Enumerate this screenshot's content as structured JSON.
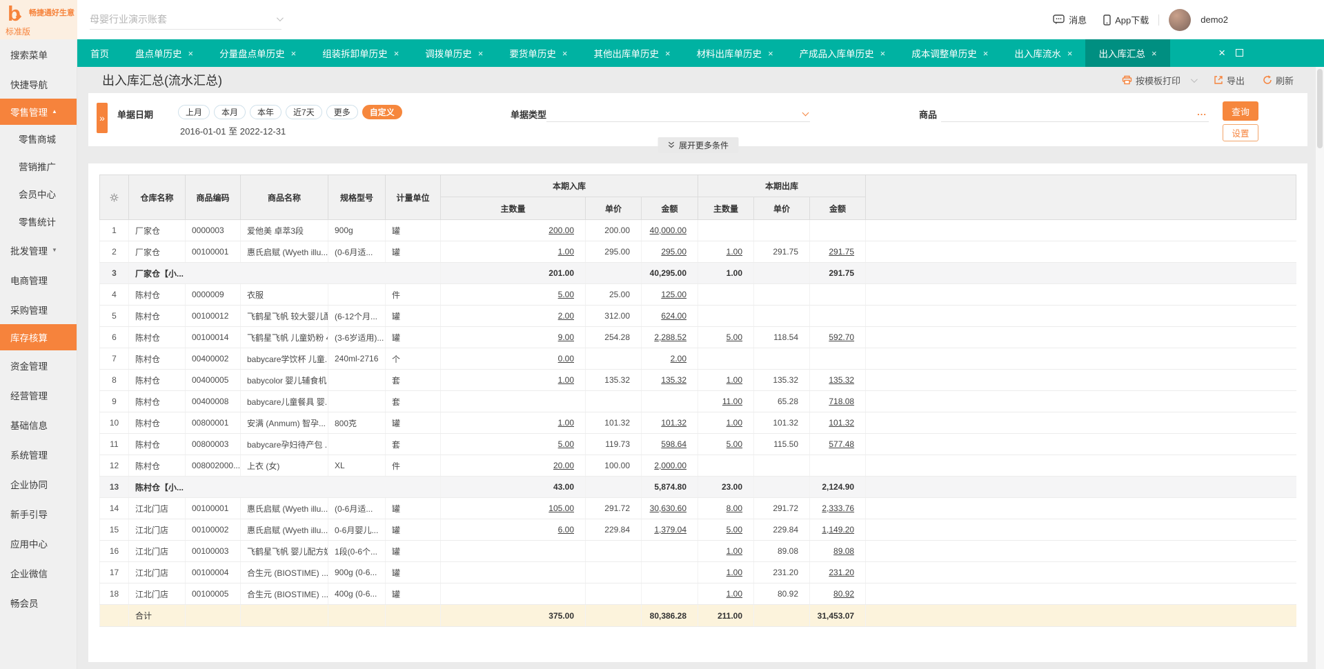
{
  "colors": {
    "teal": "#00b2a2",
    "teal_active": "#008f81",
    "orange": "#f6833c",
    "total_row_bg": "#fcf3dc"
  },
  "icons": {
    "message": "speech-bubble",
    "app_download": "phone",
    "print": "printer",
    "export": "arrow-out",
    "refresh": "circular-arrow",
    "collapse": "double-angle-right",
    "expand_more": "double-chevron-down",
    "gear": "gear",
    "ellipsis": "...",
    "close": "x",
    "fullscreen": "square-outline"
  },
  "topbar": {
    "logo_text": "畅捷通好生意",
    "logo_edition": "标准版",
    "account_select": "母婴行业演示账套",
    "messages_label": "消息",
    "app_download_label": "App下载",
    "username": "demo2"
  },
  "tabbar": {
    "home_tab": "首页",
    "tabs": [
      "盘点单历史",
      "分量盘点单历史",
      "组装拆卸单历史",
      "调拨单历史",
      "要货单历史",
      "其他出库单历史",
      "材料出库单历史",
      "产成品入库单历史",
      "成本调整单历史",
      "出入库流水",
      "出入库汇总"
    ],
    "active_tab": "出入库汇总"
  },
  "sidebar": {
    "items": [
      {
        "label": "搜索菜单"
      },
      {
        "label": "快捷导航"
      },
      {
        "label": "零售管理",
        "active": true,
        "arrow": "up"
      },
      {
        "label": "零售商城",
        "sub": true
      },
      {
        "label": "营销推广",
        "sub": true
      },
      {
        "label": "会员中心",
        "sub": true
      },
      {
        "label": "零售统计",
        "sub": true
      },
      {
        "label": "批发管理",
        "arrow": "down"
      },
      {
        "label": "电商管理"
      },
      {
        "label": "采购管理"
      },
      {
        "label": "库存核算",
        "active": true
      },
      {
        "label": "资金管理"
      },
      {
        "label": "经营管理"
      },
      {
        "label": "基础信息"
      },
      {
        "label": "系统管理"
      },
      {
        "label": "企业协同"
      },
      {
        "label": "新手引导"
      },
      {
        "label": "应用中心"
      },
      {
        "label": "企业微信"
      },
      {
        "label": "畅会员"
      }
    ]
  },
  "page": {
    "title": "出入库汇总(流水汇总)",
    "print_label": "按模板打印",
    "export_label": "导出",
    "refresh_label": "刷新"
  },
  "filters": {
    "date_label": "单据日期",
    "date_quick": [
      "上月",
      "本月",
      "本年",
      "近7天",
      "更多"
    ],
    "date_custom": "自定义",
    "date_range": "2016-01-01 至 2022-12-31",
    "doc_type_label": "单据类型",
    "product_label": "商品",
    "query_label": "查询",
    "settings_label": "设置",
    "expand_more_label": "展开更多条件"
  },
  "table": {
    "headers": {
      "warehouse": "仓库名称",
      "code": "商品编码",
      "name": "商品名称",
      "spec": "规格型号",
      "unit": "计量单位",
      "in_group": "本期入库",
      "out_group": "本期出库",
      "qty": "主数量",
      "price": "单价",
      "amount": "金额"
    },
    "rows": [
      {
        "no": "1",
        "warehouse": "厂家仓",
        "code": "0000003",
        "name": "爱他美 卓萃3段",
        "spec": "900g",
        "unit": "罐",
        "in_qty": "200.00",
        "in_price": "200.00",
        "in_amt": "40,000.00"
      },
      {
        "no": "2",
        "warehouse": "厂家仓",
        "code": "00100001",
        "name": "惠氏启赋 (Wyeth illu...",
        "spec": "(0-6月适...",
        "unit": "罐",
        "in_qty": "1.00",
        "in_price": "295.00",
        "in_amt": "295.00",
        "out_qty": "1.00",
        "out_price": "291.75",
        "out_amt": "291.75"
      },
      {
        "no": "3",
        "warehouse": "厂家仓【小...",
        "subtotal": true,
        "in_qty": "201.00",
        "in_amt": "40,295.00",
        "out_qty": "1.00",
        "out_amt": "291.75"
      },
      {
        "no": "4",
        "warehouse": "陈村仓",
        "code": "0000009",
        "name": "衣服",
        "spec": "",
        "unit": "件",
        "in_qty": "5.00",
        "in_price": "25.00",
        "in_amt": "125.00"
      },
      {
        "no": "5",
        "warehouse": "陈村仓",
        "code": "00100012",
        "name": "飞鹤星飞帆 较大婴儿配...",
        "spec": "(6-12个月...",
        "unit": "罐",
        "in_qty": "2.00",
        "in_price": "312.00",
        "in_amt": "624.00"
      },
      {
        "no": "6",
        "warehouse": "陈村仓",
        "code": "00100014",
        "name": "飞鹤星飞帆 儿童奶粉 4...",
        "spec": "(3-6岁适用)...",
        "unit": "罐",
        "in_qty": "9.00",
        "in_price": "254.28",
        "in_amt": "2,288.52",
        "out_qty": "5.00",
        "out_price": "118.54",
        "out_amt": "592.70"
      },
      {
        "no": "7",
        "warehouse": "陈村仓",
        "code": "00400002",
        "name": "babycare学饮杯 儿童...",
        "spec": "240ml-2716",
        "unit": "个",
        "in_qty": "0.00",
        "in_amt": "2.00"
      },
      {
        "no": "8",
        "warehouse": "陈村仓",
        "code": "00400005",
        "name": "babycolor 婴儿辅食机 ...",
        "spec": "",
        "unit": "套",
        "in_qty": "1.00",
        "in_price": "135.32",
        "in_amt": "135.32",
        "out_qty": "1.00",
        "out_price": "135.32",
        "out_amt": "135.32"
      },
      {
        "no": "9",
        "warehouse": "陈村仓",
        "code": "00400008",
        "name": "babycare儿童餐具 婴...",
        "spec": "",
        "unit": "套",
        "out_qty": "11.00",
        "out_price": "65.28",
        "out_amt": "718.08"
      },
      {
        "no": "10",
        "warehouse": "陈村仓",
        "code": "00800001",
        "name": "安满 (Anmum) 智孕...",
        "spec": "800克",
        "unit": "罐",
        "in_qty": "1.00",
        "in_price": "101.32",
        "in_amt": "101.32",
        "out_qty": "1.00",
        "out_price": "101.32",
        "out_amt": "101.32"
      },
      {
        "no": "11",
        "warehouse": "陈村仓",
        "code": "00800003",
        "name": "babycare孕妇待产包 ...",
        "spec": "",
        "unit": "套",
        "in_qty": "5.00",
        "in_price": "119.73",
        "in_amt": "598.64",
        "out_qty": "5.00",
        "out_price": "115.50",
        "out_amt": "577.48"
      },
      {
        "no": "12",
        "warehouse": "陈村仓",
        "code": "008002000...",
        "name": "上衣 (女)",
        "spec": "XL",
        "unit": "件",
        "in_qty": "20.00",
        "in_price": "100.00",
        "in_amt": "2,000.00"
      },
      {
        "no": "13",
        "warehouse": "陈村仓【小...",
        "subtotal": true,
        "in_qty": "43.00",
        "in_amt": "5,874.80",
        "out_qty": "23.00",
        "out_amt": "2,124.90"
      },
      {
        "no": "14",
        "warehouse": "江北门店",
        "code": "00100001",
        "name": "惠氏启赋 (Wyeth illu...",
        "spec": "(0-6月适...",
        "unit": "罐",
        "in_qty": "105.00",
        "in_price": "291.72",
        "in_amt": "30,630.60",
        "out_qty": "8.00",
        "out_price": "291.72",
        "out_amt": "2,333.76"
      },
      {
        "no": "15",
        "warehouse": "江北门店",
        "code": "00100002",
        "name": "惠氏启赋 (Wyeth illu...",
        "spec": "0-6月婴儿...",
        "unit": "罐",
        "in_qty": "6.00",
        "in_price": "229.84",
        "in_amt": "1,379.04",
        "out_qty": "5.00",
        "out_price": "229.84",
        "out_amt": "1,149.20"
      },
      {
        "no": "16",
        "warehouse": "江北门店",
        "code": "00100003",
        "name": "飞鹤星飞帆 婴儿配方奶...",
        "spec": "1段(0-6个...",
        "unit": "罐",
        "out_qty": "1.00",
        "out_price": "89.08",
        "out_amt": "89.08"
      },
      {
        "no": "17",
        "warehouse": "江北门店",
        "code": "00100004",
        "name": "合生元 (BIOSTIME) ...",
        "spec": "900g (0-6...",
        "unit": "罐",
        "out_qty": "1.00",
        "out_price": "231.20",
        "out_amt": "231.20"
      },
      {
        "no": "18",
        "warehouse": "江北门店",
        "code": "00100005",
        "name": "合生元 (BIOSTIME) ...",
        "spec": "400g (0-6...",
        "unit": "罐",
        "out_qty": "1.00",
        "out_price": "80.92",
        "out_amt": "80.92"
      }
    ],
    "total_row": {
      "label": "合计",
      "in_qty": "375.00",
      "in_amt": "80,386.28",
      "out_qty": "211.00",
      "out_amt": "31,453.07"
    }
  }
}
